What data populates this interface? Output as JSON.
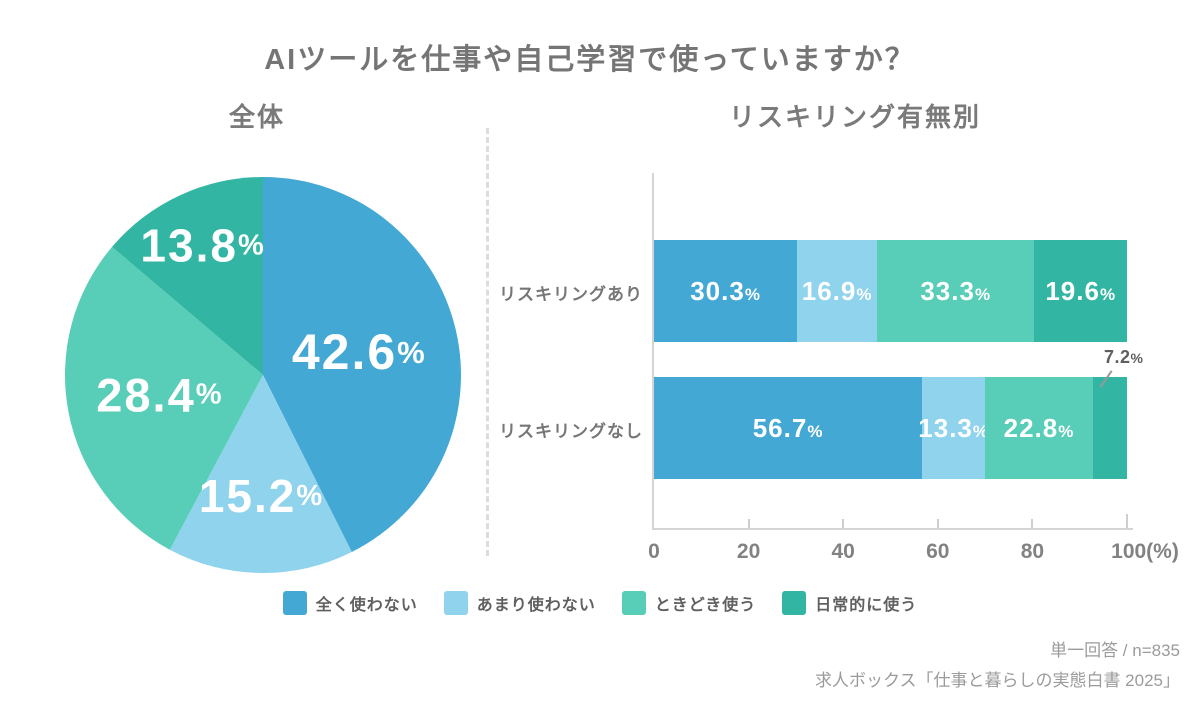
{
  "page": {
    "title": "AIツールを仕事や自己学習で使っていますか？"
  },
  "colors": {
    "series": [
      "#44a8d4",
      "#8fd3ec",
      "#58cdb7",
      "#32b6a3"
    ],
    "axis": "#d4d4d4",
    "divider": "#dcdcdc",
    "heading_text": "#7a7a7a",
    "category_text": "#767676",
    "value_text": "#ffffff",
    "footer_text": "#9b9b9b"
  },
  "legend": {
    "items": [
      {
        "label": "全く使わない"
      },
      {
        "label": "あまり使わない"
      },
      {
        "label": "ときどき使う"
      },
      {
        "label": "日常的に使う"
      }
    ]
  },
  "chart_data": [
    {
      "type": "pie",
      "title": "全体",
      "categories": [
        "全く使わない",
        "あまり使わない",
        "ときどき使う",
        "日常的に使う"
      ],
      "values": [
        42.6,
        15.2,
        28.4,
        13.8
      ],
      "unit": "%",
      "start_angle": "top",
      "direction": "clockwise"
    },
    {
      "type": "bar",
      "variant": "horizontal-stacked",
      "title": "リスキリング有無別",
      "categories": [
        "リスキリングあり",
        "リスキリングなし"
      ],
      "series": [
        {
          "name": "全く使わない",
          "values": [
            30.3,
            56.7
          ]
        },
        {
          "name": "あまり使わない",
          "values": [
            16.9,
            13.3
          ]
        },
        {
          "name": "ときどき使う",
          "values": [
            33.3,
            22.8
          ]
        },
        {
          "name": "日常的に使う",
          "values": [
            19.6,
            7.2
          ]
        }
      ],
      "xlim": [
        0,
        100
      ],
      "x_ticks": [
        {
          "value": 0,
          "label": "0"
        },
        {
          "value": 20,
          "label": "20"
        },
        {
          "value": 40,
          "label": "40"
        },
        {
          "value": 60,
          "label": "60"
        },
        {
          "value": 80,
          "label": "80"
        },
        {
          "value": 100,
          "label": "100(%)"
        }
      ],
      "outside_label": {
        "category_index": 1,
        "series_index": 3,
        "text": "7.2%"
      }
    }
  ],
  "footer": {
    "line1": "単一回答 / n=835",
    "line2": "求人ボックス「仕事と暮らしの実態白書 2025」"
  }
}
